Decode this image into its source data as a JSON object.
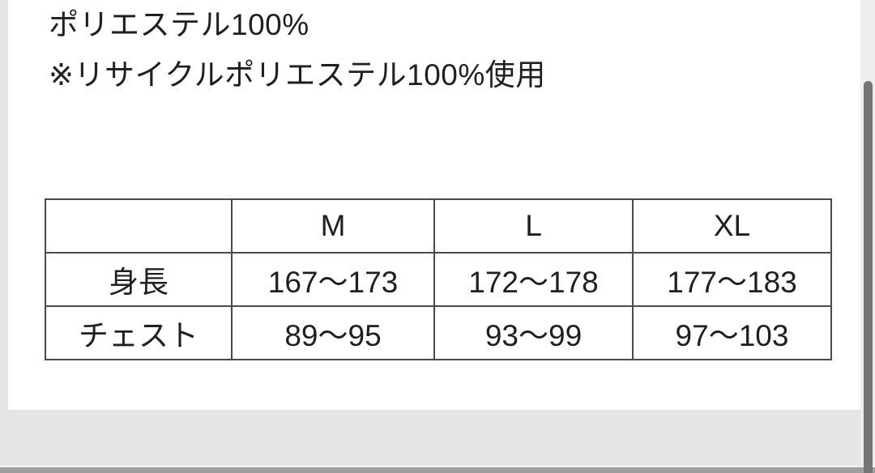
{
  "material": {
    "line1": "ポリエステル100%",
    "line2": "※リサイクルポリエステル100%使用"
  },
  "size_table": {
    "corner": "",
    "columns": [
      "M",
      "L",
      "XL"
    ],
    "rows": [
      {
        "label": "身長",
        "values": [
          "167〜173",
          "172〜178",
          "177〜183"
        ]
      },
      {
        "label": "チェスト",
        "values": [
          "89〜95",
          "93〜99",
          "97〜103"
        ]
      }
    ]
  },
  "colors": {
    "page_background": "#e5e5e5",
    "card_background": "#ffffff",
    "text": "#1f1f1f",
    "table_border": "#4a4a4a",
    "scrollbar_track": "#ededed",
    "scrollbar_thumb": "#757575",
    "bottom_bar": "#9e9e9e"
  }
}
